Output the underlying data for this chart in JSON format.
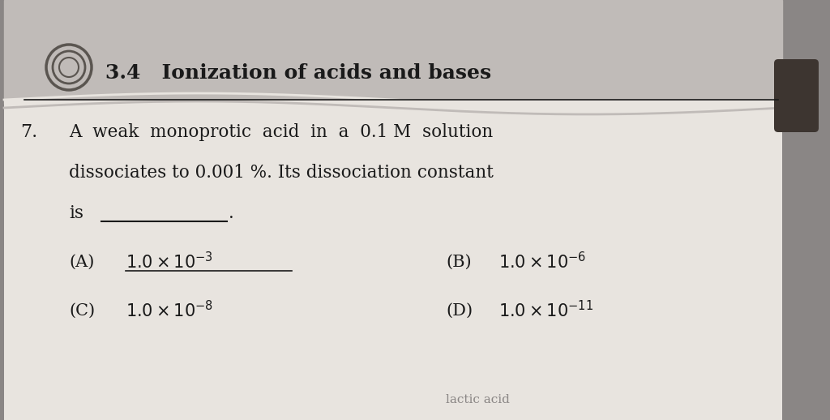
{
  "bg_color": "#d0ccc8",
  "page_bg": "#e8e4df",
  "section_title": "3.4   Ionization of acids and bases",
  "question_number": "7.",
  "question_text_line1": "A  weak  monoprotic  acid  in  a  0.1 M  solution",
  "question_text_line2": "dissociates to 0.001 %. Its dissociation constant",
  "question_text_line3": "is",
  "option_A_label": "(A)",
  "option_A_value": "1.0 × 10⁻³",
  "option_B_label": "(B)",
  "option_B_value": "1.0 × 10⁻⁶",
  "option_C_label": "(C)",
  "option_C_value": "1.0 × 10⁻⁸",
  "option_D_label": "(D)",
  "option_D_value": "1.0 × 10⁻¹¹",
  "underline_after_is": true
}
